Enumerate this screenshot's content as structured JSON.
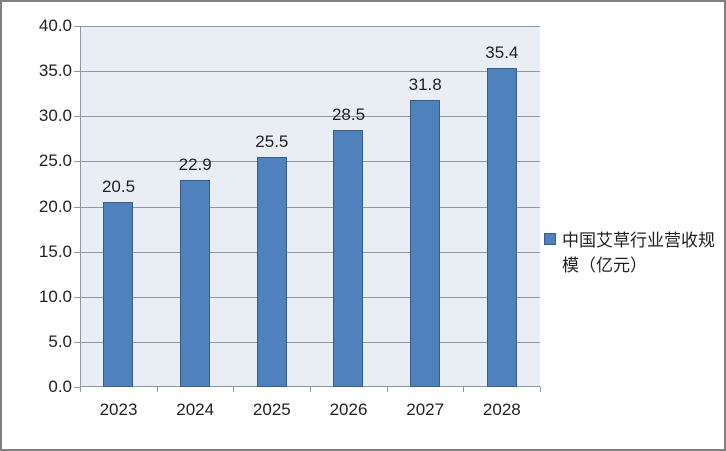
{
  "chart_data": {
    "type": "bar",
    "categories": [
      "2023",
      "2024",
      "2025",
      "2026",
      "2027",
      "2028"
    ],
    "values": [
      20.5,
      22.9,
      25.5,
      28.5,
      31.8,
      35.4
    ],
    "series_name": "中国艾草行业营收规模（亿元）",
    "title": "",
    "xlabel": "",
    "ylabel": "",
    "ylim": [
      0,
      40
    ],
    "ytick_step": 5,
    "ytick_decimals": 1,
    "grid": true,
    "data_labels": true,
    "legend_position": "right",
    "colors": {
      "bar_fill": "#4f81bd",
      "bar_border": "#385d8a",
      "plot_background": "#e9eef5",
      "gridline": "#8e99a8",
      "text": "#1f1f1f",
      "frame_border": "#808080"
    }
  }
}
